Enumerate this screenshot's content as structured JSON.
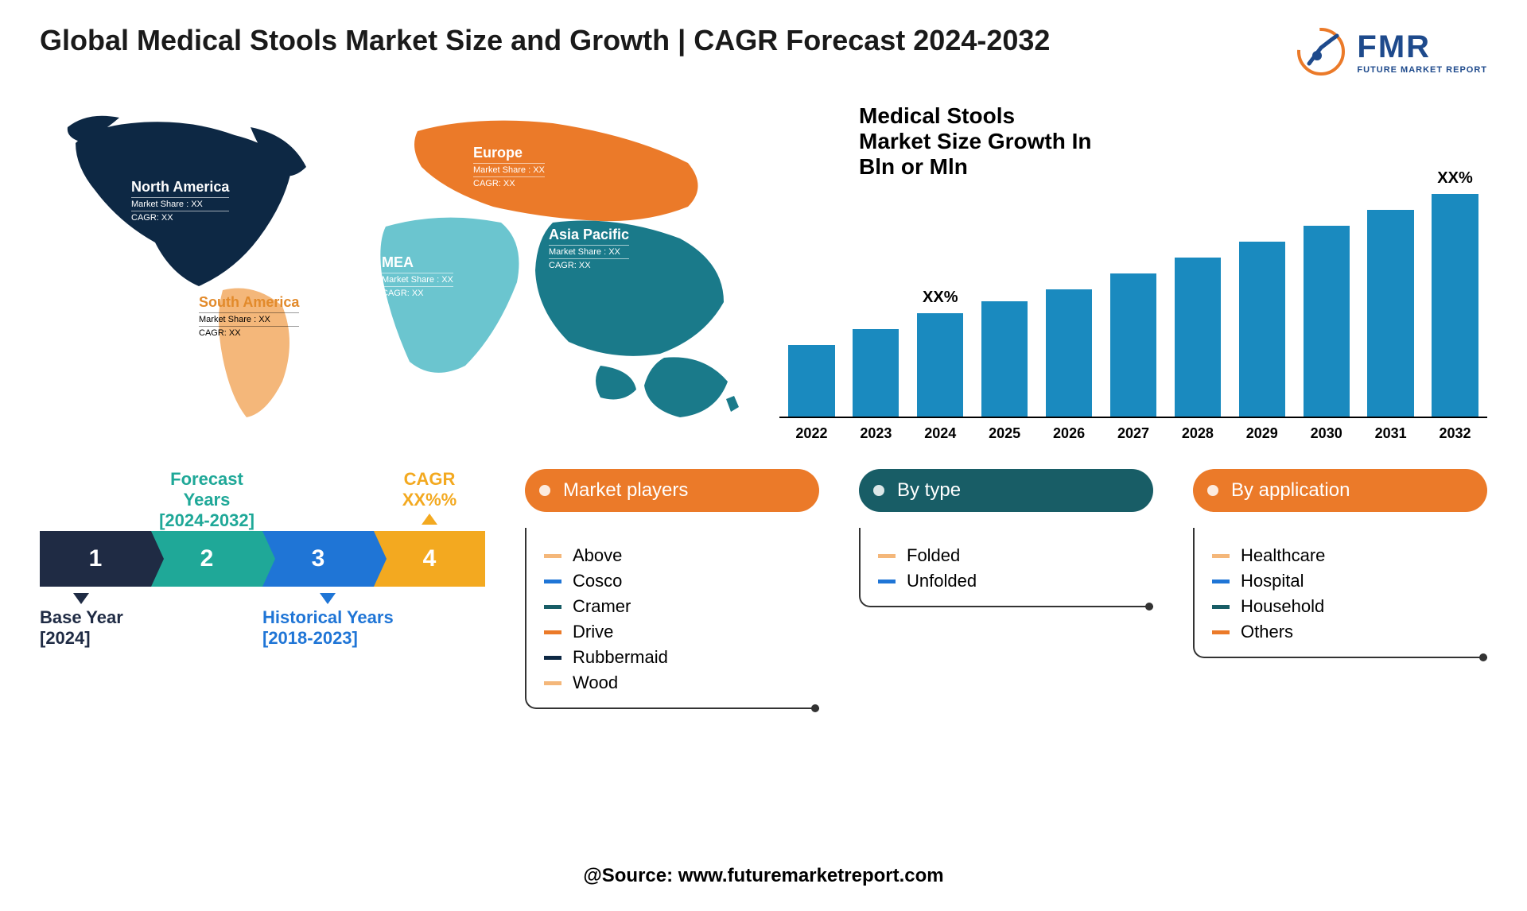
{
  "title": "Global Medical Stools Market Size and Growth | CAGR Forecast 2024-2032",
  "logo": {
    "main": "FMR",
    "sub": "FUTURE MARKET REPORT"
  },
  "colors": {
    "navy": "#0d2844",
    "teal": "#1a7a8a",
    "sand": "#f4b77a",
    "orange": "#eb7a29",
    "aqua": "#6bc5cf",
    "barBlue": "#1a8abf",
    "blue": "#1f75d6",
    "gold": "#f3a920",
    "darkTeal": "#185d66",
    "logoBlue": "#1e4a8c",
    "logoOrange": "#eb7a29"
  },
  "map": {
    "regions": [
      {
        "name": "North America",
        "share": "Market Share : XX",
        "cagr": "CAGR: XX",
        "color": "#0d2844",
        "labelColor": "light"
      },
      {
        "name": "South America",
        "share": "Market Share : XX",
        "cagr": "CAGR: XX",
        "color": "#f4b77a",
        "labelColor": "dark"
      },
      {
        "name": "Europe",
        "share": "Market Share : XX",
        "cagr": "CAGR: XX",
        "color": "#eb7a29",
        "labelColor": "light"
      },
      {
        "name": "MEA",
        "share": "Market Share : XX",
        "cagr": "CAGR: XX",
        "color": "#6bc5cf",
        "labelColor": "light"
      },
      {
        "name": "Asia Pacific",
        "share": "Market Share : XX",
        "cagr": "CAGR: XX",
        "color": "#1a7a8a",
        "labelColor": "light"
      }
    ]
  },
  "chart": {
    "title": "Medical Stools\nMarket Size Growth In\nBln or Mln",
    "barColor": "#1a8abf",
    "years": [
      "2022",
      "2023",
      "2024",
      "2025",
      "2026",
      "2027",
      "2028",
      "2029",
      "2030",
      "2031",
      "2032"
    ],
    "values": [
      90,
      110,
      130,
      145,
      160,
      180,
      200,
      220,
      240,
      260,
      280
    ],
    "maxHeight": 280,
    "annotations": [
      {
        "index": 2,
        "text": "XX%"
      },
      {
        "index": 10,
        "text": "XX%"
      }
    ]
  },
  "timeline": {
    "segments": [
      {
        "num": "1",
        "color": "#1f2b44",
        "arrow": "#1f2b44"
      },
      {
        "num": "2",
        "color": "#1fa898",
        "arrow": "#1fa898"
      },
      {
        "num": "3",
        "color": "#1f75d6",
        "arrow": "#1f75d6"
      },
      {
        "num": "4",
        "color": "#f3a920",
        "arrow": "#f3a920"
      }
    ],
    "labelsTop": [
      {
        "seg": 1,
        "title": "Forecast Years",
        "sub": "[2024-2032]",
        "color": "#1fa898"
      },
      {
        "seg": 3,
        "title": "CAGR",
        "sub": "XX%%",
        "color": "#f3a920"
      }
    ],
    "labelsBottom": [
      {
        "seg": 0,
        "title": "Base Year",
        "sub": "[2024]",
        "color": "#1f2b44"
      },
      {
        "seg": 2,
        "title": "Historical Years",
        "sub": "[2018-2023]",
        "color": "#1f75d6"
      }
    ]
  },
  "categories": [
    {
      "header": "Market players",
      "headerColor": "#eb7a29",
      "items": [
        {
          "label": "Above",
          "bullet": "#f4b77a"
        },
        {
          "label": "Cosco",
          "bullet": "#1f75d6"
        },
        {
          "label": "Cramer",
          "bullet": "#185d66"
        },
        {
          "label": "Drive",
          "bullet": "#eb7a29"
        },
        {
          "label": "Rubbermaid",
          "bullet": "#0d2844"
        },
        {
          "label": "Wood",
          "bullet": "#f4b77a"
        }
      ]
    },
    {
      "header": "By type",
      "headerColor": "#185d66",
      "items": [
        {
          "label": "Folded",
          "bullet": "#f4b77a"
        },
        {
          "label": "Unfolded",
          "bullet": "#1f75d6"
        }
      ]
    },
    {
      "header": "By application",
      "headerColor": "#eb7a29",
      "items": [
        {
          "label": "Healthcare",
          "bullet": "#f4b77a"
        },
        {
          "label": "Hospital",
          "bullet": "#1f75d6"
        },
        {
          "label": "Household",
          "bullet": "#185d66"
        },
        {
          "label": "Others",
          "bullet": "#eb7a29"
        }
      ]
    }
  ],
  "source": "@Source: www.futuremarketreport.com"
}
